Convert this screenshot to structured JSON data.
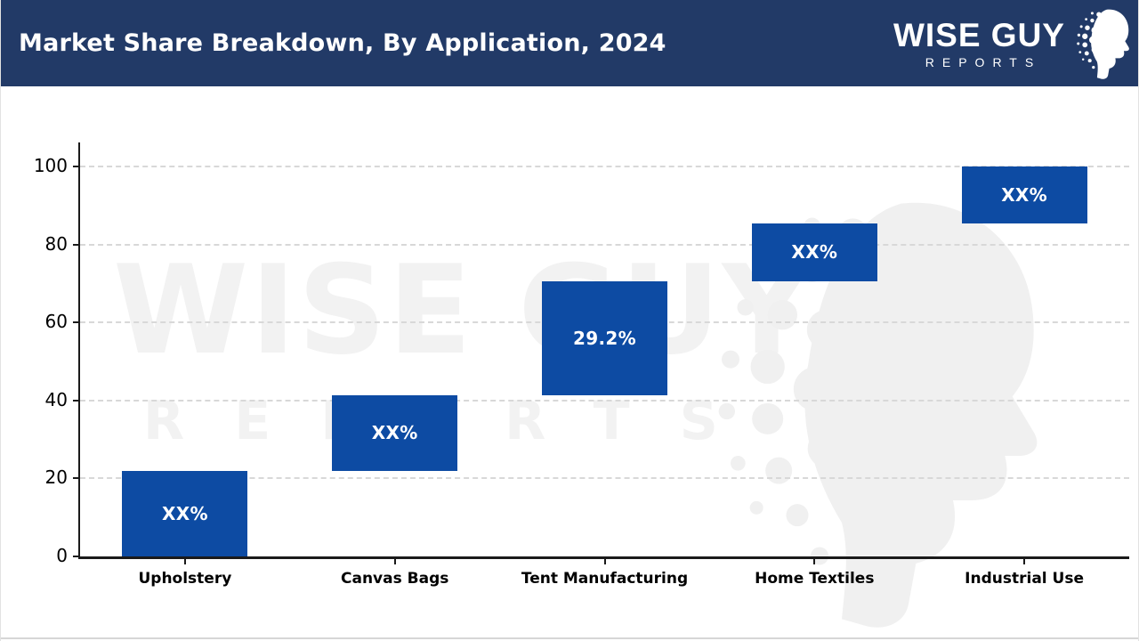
{
  "header": {
    "title": "Market Share Breakdown, By Application, 2024",
    "logo": {
      "wordmark": "WISE GUY",
      "subtext": "REPORTS"
    }
  },
  "watermark": {
    "wordmark": "WISE GUY",
    "subtext": "REPORTS"
  },
  "chart_data": {
    "type": "bar",
    "variant": "waterfall (cumulative market-share segments)",
    "title": "Market Share Breakdown, By Application, 2024",
    "categories": [
      "Upholstery",
      "Canvas Bags",
      "Tent Manufacturing",
      "Home Textiles",
      "Industrial Use"
    ],
    "bars": [
      {
        "category": "Upholstery",
        "start": 0,
        "end": 22,
        "value_label": "XX%"
      },
      {
        "category": "Canvas Bags",
        "start": 22,
        "end": 41.4,
        "value_label": "XX%"
      },
      {
        "category": "Tent Manufacturing",
        "start": 41.4,
        "end": 70.6,
        "value_label": "29.2%"
      },
      {
        "category": "Home Textiles",
        "start": 70.6,
        "end": 85.4,
        "value_label": "XX%"
      },
      {
        "category": "Industrial Use",
        "start": 85.4,
        "end": 100,
        "value_label": "XX%"
      }
    ],
    "xlabel": "",
    "ylabel": "",
    "ylim": [
      0,
      100
    ],
    "yticks": [
      0,
      20,
      40,
      60,
      80,
      100
    ],
    "grid": "horizontal dashed",
    "legend": "none",
    "colors": {
      "bar": "#0d4ba3",
      "bar_label": "#ffffff",
      "grid": "#d8d8d8",
      "axis": "#1a1a1a",
      "header_bg": "#223a67",
      "watermark": "#f2f2f2"
    }
  }
}
